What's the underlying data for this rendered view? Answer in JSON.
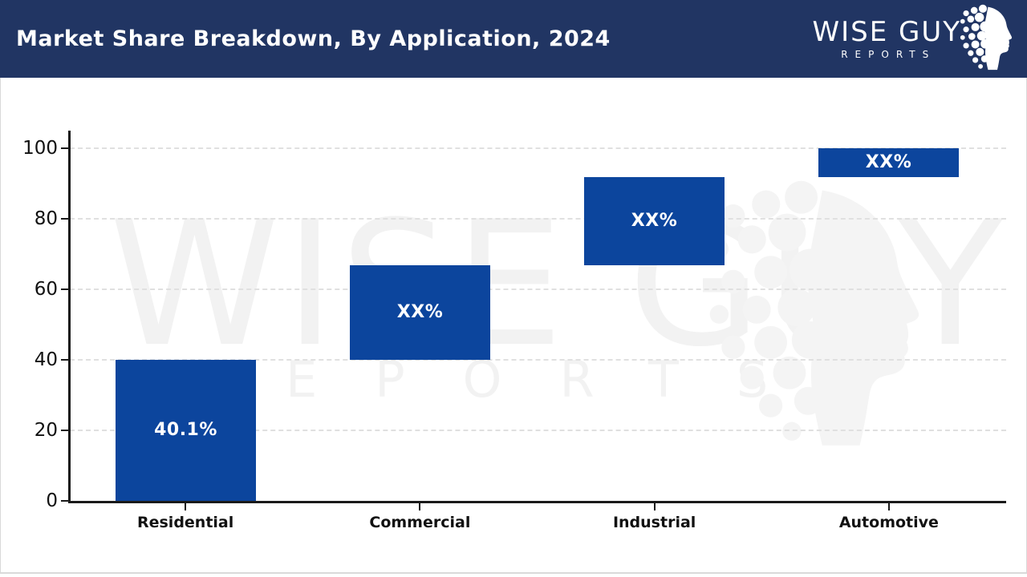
{
  "header": {
    "title": "Market Share Breakdown, By Application, 2024",
    "logo": {
      "line1": "WISE GUY",
      "line2": "REPORTS"
    }
  },
  "watermark": {
    "line1": "WISE GUY",
    "line2": "REPORTS"
  },
  "colors": {
    "header_bg": "#213563",
    "bar": "#0c459d",
    "gridline": "#e0e0e0",
    "axis": "#1a1a1a",
    "watermark": "#f2f2f2"
  },
  "chart_data": {
    "type": "bar",
    "subtype": "waterfall",
    "title": "Market Share Breakdown, By Application, 2024",
    "categories": [
      "Residential",
      "Commercial",
      "Industrial",
      "Automotive"
    ],
    "series": [
      {
        "name": "Market share (%)",
        "starts": [
          0,
          40.1,
          66.8,
          91.9
        ],
        "ends": [
          40.1,
          66.8,
          91.9,
          100
        ],
        "labels": [
          "40.1%",
          "XX%",
          "XX%",
          "XX%"
        ]
      }
    ],
    "ylim": [
      0,
      100
    ],
    "yticks": [
      0,
      20,
      40,
      60,
      80,
      100
    ],
    "xlabel": "",
    "ylabel": "",
    "grid": "horizontal-dashed",
    "legend": "none"
  }
}
